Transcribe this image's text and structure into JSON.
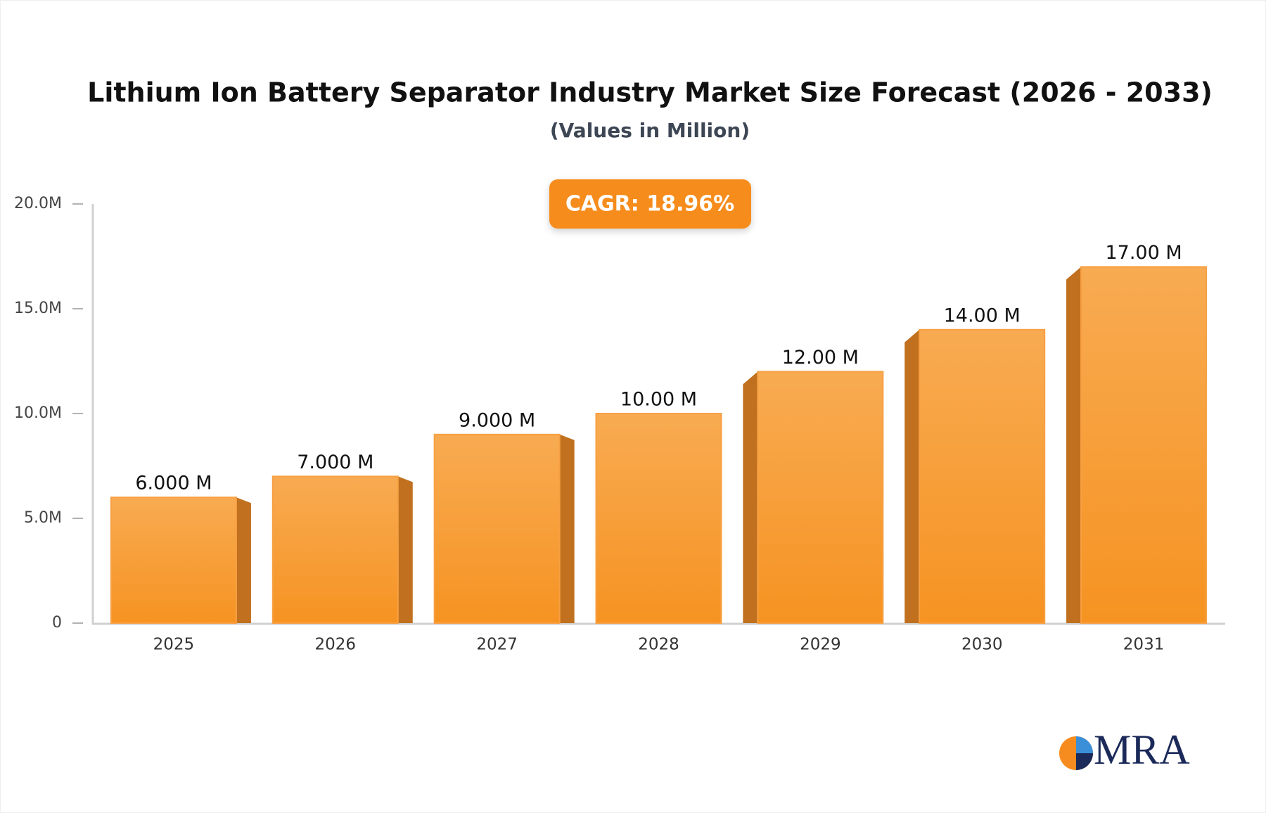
{
  "chart_data": {
    "type": "bar",
    "title": "Lithium Ion Battery Separator Industry Market Size Forecast (2026 - 2033)",
    "subtitle": "(Values in Million)",
    "annotation": "CAGR: 18.96%",
    "categories": [
      "2025",
      "2026",
      "2027",
      "2028",
      "2029",
      "2030",
      "2031"
    ],
    "values": [
      6,
      7,
      9,
      10,
      12,
      14,
      17
    ],
    "value_labels": [
      "6.000 M",
      "7.000 M",
      "9.000 M",
      "10.00 M",
      "12.00 M",
      "14.00 M",
      "17.00 M"
    ],
    "color": "#f7a043",
    "ylim": [
      0,
      20
    ],
    "yticks": [
      0,
      {
        "value": 5,
        "label": "5.0M"
      },
      {
        "value": 10,
        "label": "10.0M"
      },
      {
        "value": 15,
        "label": "15.0M"
      },
      {
        "value": 20,
        "label": "20.0M"
      }
    ],
    "grid": false
  },
  "logo": "MRA"
}
